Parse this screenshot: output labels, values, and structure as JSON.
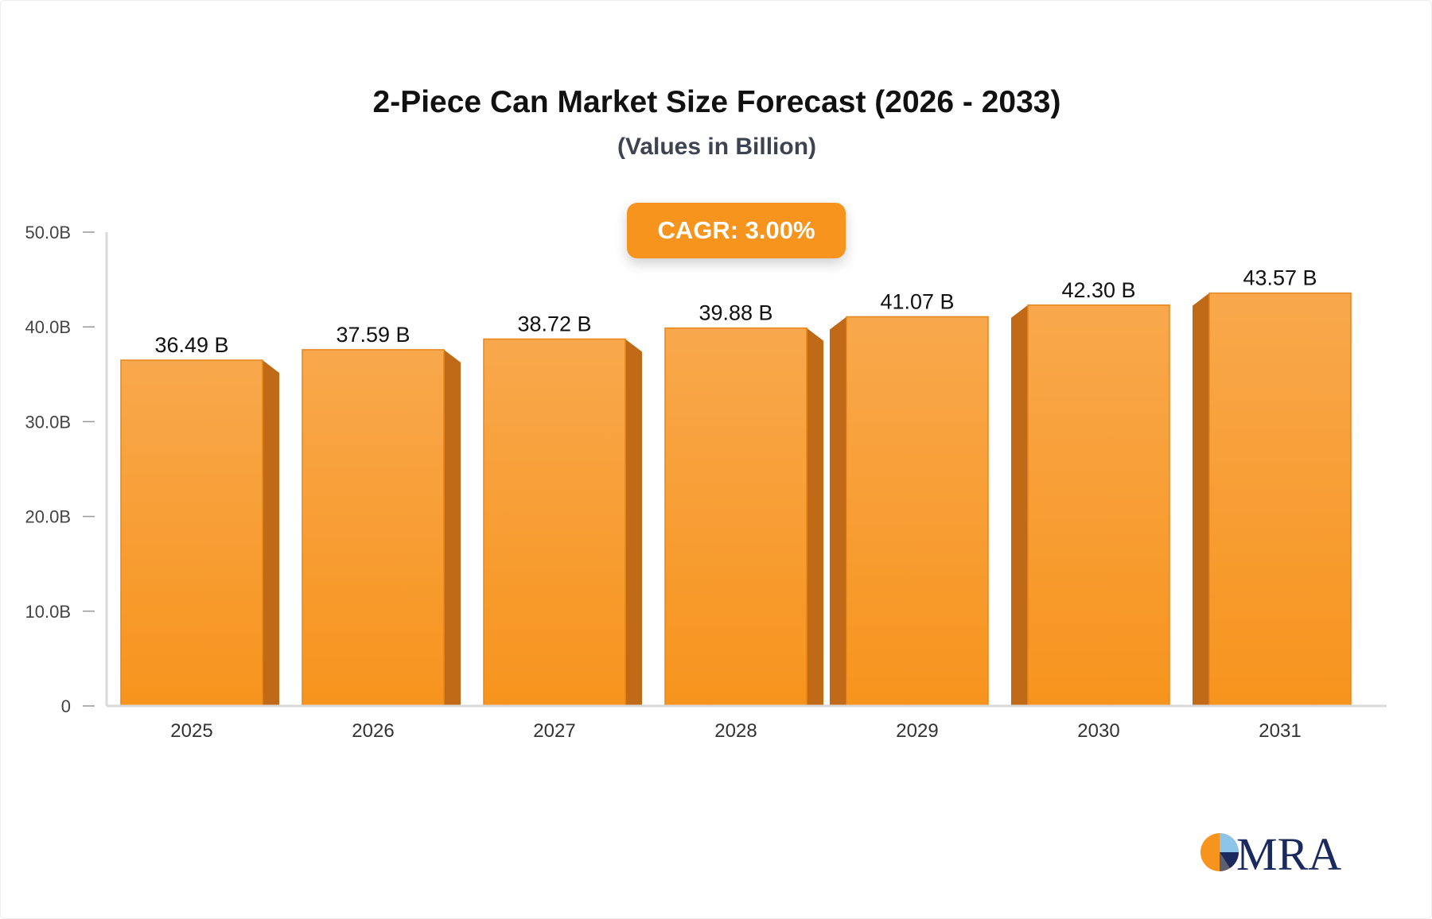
{
  "header": {
    "title": "2-Piece Can Market Size Forecast (2026 - 2033)",
    "subtitle": "(Values in Billion)"
  },
  "badge": {
    "cagr_label": "CAGR: 3.00%"
  },
  "logo": {
    "text": "MRA"
  },
  "colors": {
    "bar_top": "#f8a84c",
    "bar_bottom": "#f7941d",
    "bar_side": "#c06a18",
    "badge": "#f7941d",
    "axis": "#d9d9d9",
    "logo_text": "#1a2a5e"
  },
  "chart_data": {
    "type": "bar",
    "categories": [
      "2025",
      "2026",
      "2027",
      "2028",
      "2029",
      "2030",
      "2031"
    ],
    "values": [
      36.49,
      37.59,
      38.72,
      39.88,
      41.07,
      42.3,
      43.57
    ],
    "value_labels": [
      "36.49 B",
      "37.59 B",
      "38.72 B",
      "39.88 B",
      "41.07 B",
      "42.30 B",
      "43.57 B"
    ],
    "y_ticks": [
      0,
      10,
      20,
      30,
      40,
      50
    ],
    "y_tick_labels": [
      "0",
      "10.0B",
      "20.0B",
      "30.0B",
      "40.0B",
      "50.0B"
    ],
    "ylim": [
      0,
      50
    ],
    "title": "2-Piece Can Market Size Forecast (2026 - 2033)",
    "subtitle": "(Values in Billion)",
    "xlabel": "",
    "ylabel": "",
    "grid": false,
    "legend": "none"
  }
}
